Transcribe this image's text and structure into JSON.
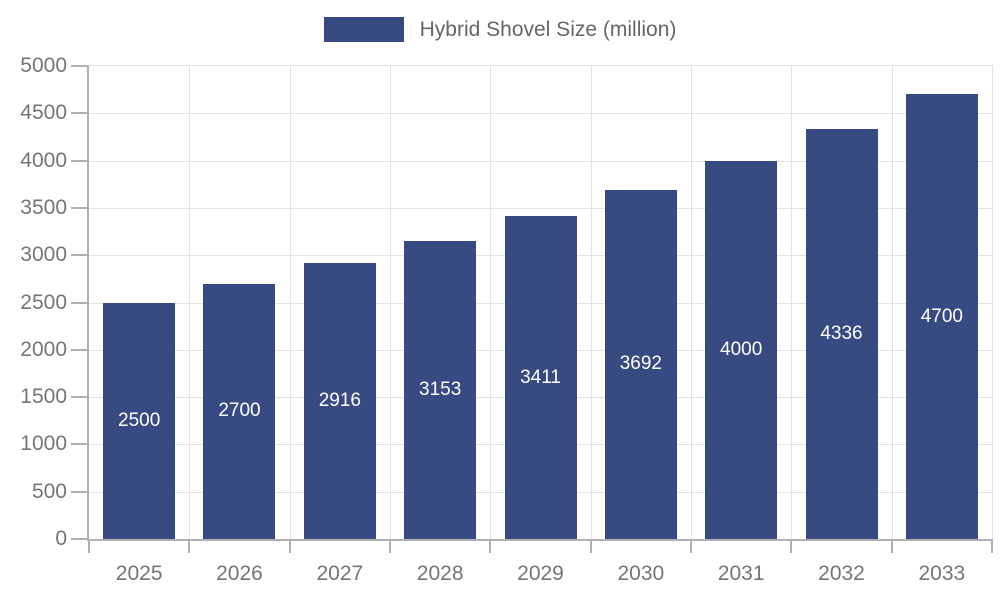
{
  "chart_data": {
    "type": "bar",
    "title": "Hybrid Shovel Size (million)",
    "series_name": "Hybrid Shovel Size (million)",
    "categories": [
      "2025",
      "2026",
      "2027",
      "2028",
      "2029",
      "2030",
      "2031",
      "2032",
      "2033"
    ],
    "values": [
      2500,
      2700,
      2916,
      3153,
      3411,
      3692,
      4000,
      4336,
      4700
    ],
    "xlabel": "",
    "ylabel": "",
    "ylim": [
      0,
      5000
    ],
    "ytick_step": 500,
    "grid": true,
    "legend_position": "top",
    "value_labels": "inside-center",
    "colors": {
      "bar": "#384a82",
      "axis_text": "#757575",
      "legend_text": "#666666",
      "gridline": "#e2e2e2",
      "axis_line": "#b0b0b0",
      "value_label": "#ffffff"
    }
  }
}
